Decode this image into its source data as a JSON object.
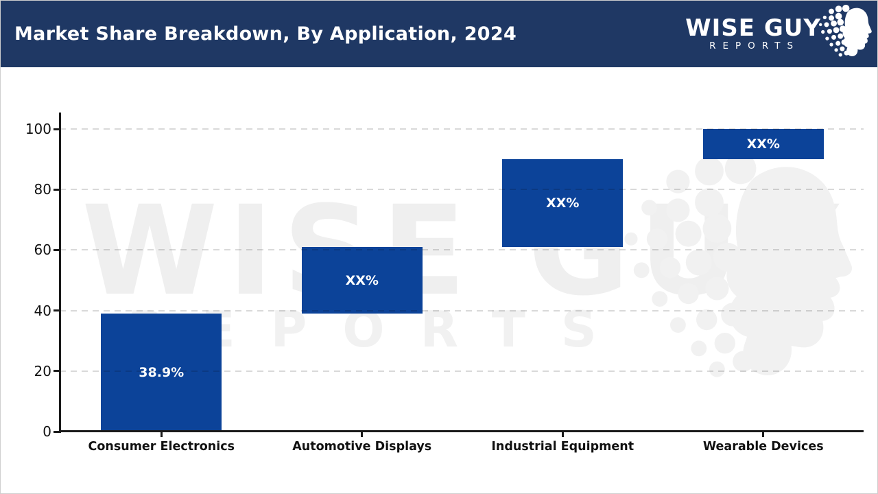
{
  "page": {
    "background": "#ffffff",
    "border_color": "#cfcfcf"
  },
  "header": {
    "background": "#1f3864",
    "title": "Market Share Breakdown, By Application, 2024",
    "logo": {
      "line1": "WISE GUY",
      "line2": "REPORTS"
    }
  },
  "watermark": {
    "line1": "WISE GUY",
    "line2": "REPORTS"
  },
  "chart_data": {
    "type": "bar",
    "variant": "floating-segment-waterfall",
    "title": "Market Share Breakdown, By Application, 2024",
    "categories": [
      "Consumer Electronics",
      "Automotive Displays",
      "Industrial Equipment",
      "Wearable Devices"
    ],
    "segments": [
      {
        "category": "Consumer Electronics",
        "start": 0,
        "end": 38.9,
        "label": "38.9%"
      },
      {
        "category": "Automotive Displays",
        "start": 38.9,
        "end": 61,
        "label": "XX%"
      },
      {
        "category": "Industrial Equipment",
        "start": 61,
        "end": 90,
        "label": "XX%"
      },
      {
        "category": "Wearable Devices",
        "start": 90,
        "end": 100,
        "label": "XX%"
      }
    ],
    "ylim": [
      0,
      100
    ],
    "yticks": [
      0,
      20,
      40,
      60,
      80,
      100
    ],
    "xlabel": "",
    "ylabel": "",
    "bar_color": "#0c4399",
    "bar_label_color": "#ffffff",
    "axis_color": "#1a1a1a",
    "grid": {
      "axis": "y",
      "style": "dashed",
      "color": "#d9d9d9"
    },
    "legend": "none"
  }
}
